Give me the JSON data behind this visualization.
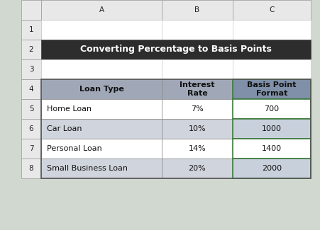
{
  "title": "Converting Percentage to Basis Points",
  "title_bg": "#2d2d2d",
  "title_color": "#ffffff",
  "col_headers": [
    "Loan Type",
    "Interest\nRate",
    "Basis Point\nFormat"
  ],
  "rows": [
    [
      "Home Loan",
      "7%",
      "700"
    ],
    [
      "Car Loan",
      "10%",
      "1000"
    ],
    [
      "Personal Loan",
      "14%",
      "1400"
    ],
    [
      "Small Business Loan",
      "20%",
      "2000"
    ]
  ],
  "header_bg": "#a0a8b8",
  "header_bg_d": "#8090a8",
  "row_bg_white": "#ffffff",
  "row_bg_gray": "#d0d4dc",
  "col_d_selected_bg": "#c8d0dc",
  "col_d_header_bg": "#8090a8",
  "grid_color": "#888888",
  "row_header_bg": "#e8e8e8",
  "col_header_bg": "#e8e8e8",
  "col_header_selected": "#c8d8c0",
  "border_color": "#3d7a3d",
  "figure_bg": "#d0d8d0"
}
